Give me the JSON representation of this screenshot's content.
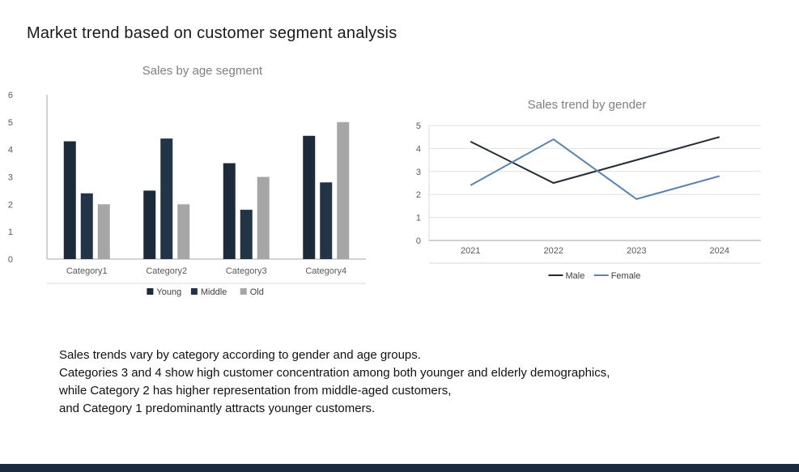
{
  "header": {
    "title": "Market trend based on customer segment analysis"
  },
  "colors": {
    "footer_bar": "#1b2a41",
    "axis": "#a6a6a6",
    "grid": "#e2e2e2",
    "chart_title_text": "#7f7f7f",
    "tick_text": "#595959"
  },
  "chart_data": [
    {
      "type": "bar",
      "title": "Sales by age segment",
      "categories": [
        "Category1",
        "Category2",
        "Category3",
        "Category4"
      ],
      "series": [
        {
          "name": "Young",
          "color": "#1c2a3a",
          "values": [
            4.3,
            2.5,
            3.5,
            4.5
          ]
        },
        {
          "name": "Middle",
          "color": "#243447",
          "values": [
            2.4,
            4.4,
            1.8,
            2.8
          ]
        },
        {
          "name": "Old",
          "color": "#a6a6a6",
          "values": [
            2.0,
            2.0,
            3.0,
            5.0
          ]
        }
      ],
      "ylim": [
        0,
        6
      ],
      "yticks": [
        0,
        1,
        2,
        3,
        4,
        5,
        6
      ],
      "grid": false,
      "legend_position": "bottom"
    },
    {
      "type": "line",
      "title": "Sales trend by gender",
      "x": [
        "2021",
        "2022",
        "2023",
        "2024"
      ],
      "series": [
        {
          "name": "Male",
          "color": "#222b36",
          "values": [
            4.3,
            2.5,
            3.5,
            4.5
          ]
        },
        {
          "name": "Female",
          "color": "#5b83b0",
          "values": [
            2.4,
            4.4,
            1.8,
            2.8
          ]
        }
      ],
      "ylim": [
        0,
        5
      ],
      "yticks": [
        0,
        1,
        2,
        3,
        4,
        5
      ],
      "grid": true,
      "legend_position": "bottom"
    }
  ],
  "summary": {
    "lines": [
      "Sales trends vary by category according to gender and age groups.",
      "Categories 3 and 4 show high customer concentration among both younger and elderly demographics,",
      "while Category 2 has higher representation from middle-aged customers,",
      "and Category 1 predominantly attracts younger customers."
    ]
  }
}
